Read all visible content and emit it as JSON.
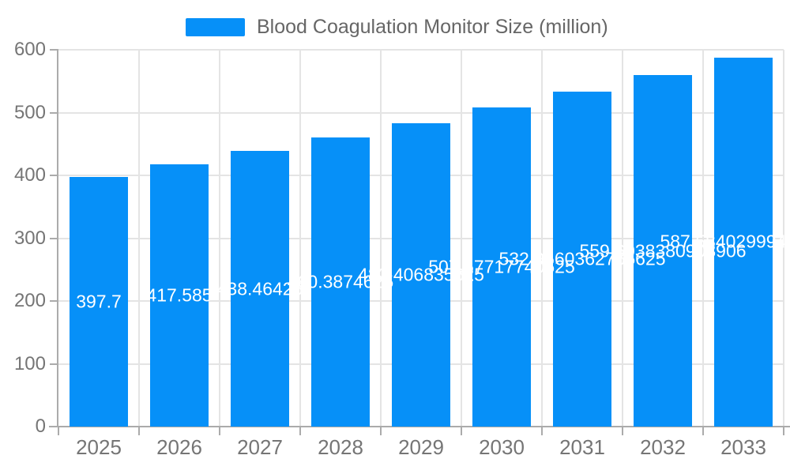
{
  "legend": {
    "label": "Blood Coagulation Monitor Size (million)"
  },
  "colors": {
    "bar": "#0690F8",
    "axis_line": "#ABABAB",
    "grid_line": "#E4E4E4",
    "axis_text": "#757575",
    "legend_text": "#666666",
    "value_text": "#FFFFFF"
  },
  "chart_data": {
    "type": "bar",
    "title": "Blood Coagulation Monitor Size (million)",
    "legend_position": "top-center",
    "grid": true,
    "categories": [
      "2025",
      "2026",
      "2027",
      "2028",
      "2029",
      "2030",
      "2031",
      "2032",
      "2033"
    ],
    "values": [
      397.7,
      417.585,
      438.46425,
      460.3874625,
      483.406835625,
      507.57717740625,
      532.9560362765625,
      559.6038380903906,
      587.5840299949102
    ],
    "value_labels": [
      "397.7",
      "417.585",
      "438.46425",
      "460.3874625",
      "483.406835625",
      "507.57717740625",
      "532.9560362765625",
      "559.6038380903906",
      "587.5840299949102"
    ],
    "series_name": "Blood Coagulation Monitor Size (million)",
    "xlabel": "",
    "ylabel": "",
    "ylim": [
      0,
      600
    ],
    "y_ticks": [
      0,
      100,
      200,
      300,
      400,
      500,
      600
    ],
    "y_tick_labels": [
      "0",
      "100",
      "200",
      "300",
      "400",
      "500",
      "600"
    ]
  }
}
